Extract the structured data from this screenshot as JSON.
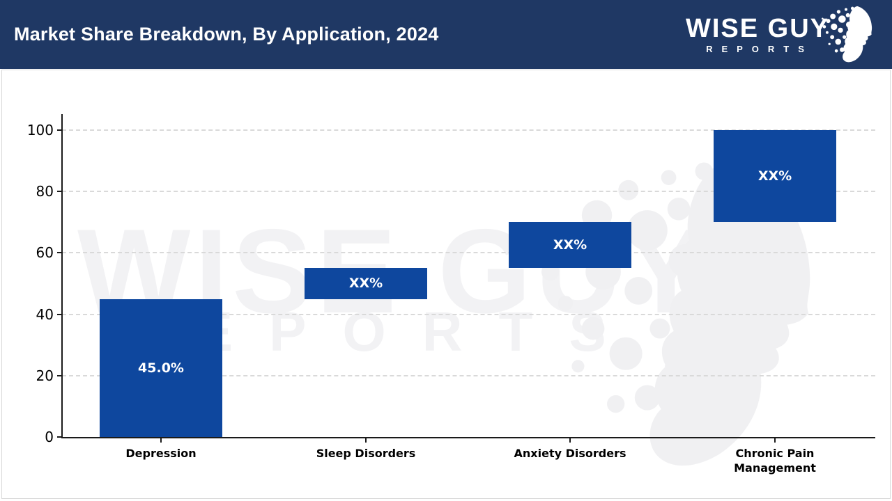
{
  "header": {
    "title": "Market Share Breakdown, By Application, 2024",
    "bg_color": "#1F3864",
    "logo": {
      "line1": "WISE GUY",
      "line2": "REPORTS"
    }
  },
  "watermark": {
    "line1": "WISE GUY",
    "line2": "REPORTS"
  },
  "chart_data": {
    "type": "bar",
    "subtype": "waterfall",
    "title": "Market Share Breakdown, By Application, 2024",
    "categories": [
      "Depression",
      "Sleep Disorders",
      "Anxiety Disorders",
      "Chronic Pain Management"
    ],
    "segments": [
      {
        "category": "Depression",
        "start": 0,
        "end": 45,
        "label": "45.0%"
      },
      {
        "category": "Sleep Disorders",
        "start": 45,
        "end": 55,
        "label": "XX%"
      },
      {
        "category": "Anxiety Disorders",
        "start": 55,
        "end": 70,
        "label": "XX%"
      },
      {
        "category": "Chronic Pain Management",
        "start": 70,
        "end": 100,
        "label": "XX%"
      }
    ],
    "values": [
      45,
      10,
      15,
      30
    ],
    "xlabel": "",
    "ylabel": "",
    "ylim": [
      0,
      100
    ],
    "yticks": [
      0,
      20,
      40,
      60,
      80,
      100
    ],
    "grid": "horizontal-dashed",
    "legend": "none",
    "bar_color": "#0E479E",
    "bar_label_color": "#FFFFFF",
    "axis_color": "#1A1A1A",
    "grid_color": "#D9D9D9"
  }
}
